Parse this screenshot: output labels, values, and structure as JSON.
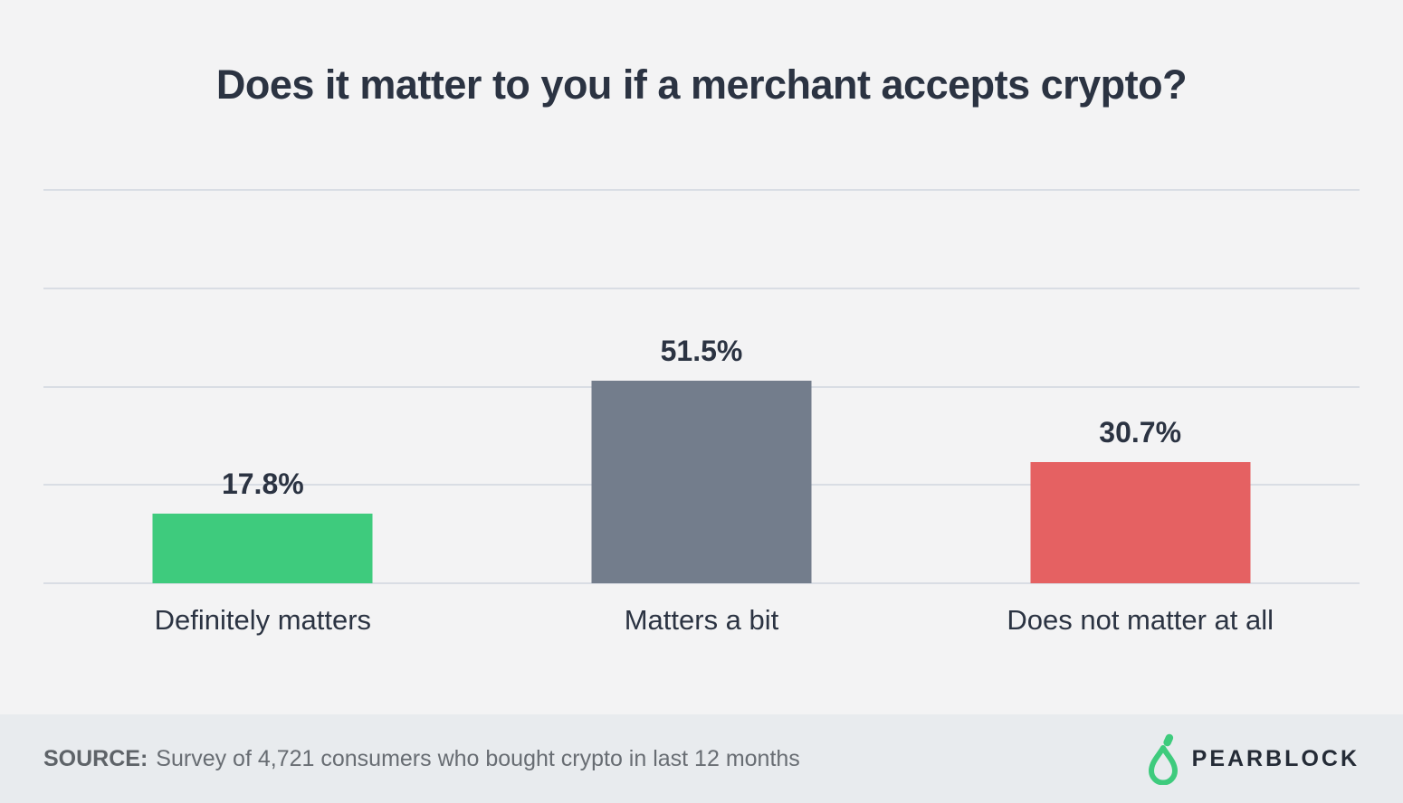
{
  "chart_data": {
    "type": "bar",
    "title": "Does it matter to you if a merchant accepts crypto?",
    "categories": [
      "Definitely matters",
      "Matters a bit",
      "Does not matter at all"
    ],
    "values": [
      17.8,
      51.5,
      30.7
    ],
    "value_labels": [
      "17.8%",
      "51.5%",
      "30.7%"
    ],
    "bar_colors": [
      "#3ecb7d",
      "#737d8c",
      "#e56162"
    ],
    "xlabel": "",
    "ylabel": "",
    "ylim": [
      0,
      100
    ],
    "gridline_values": [
      0,
      25,
      50,
      75,
      100
    ],
    "grid": true,
    "legend": false
  },
  "footer": {
    "source_label": "SOURCE:",
    "source_text": "Survey of 4,721 consumers who bought crypto in last 12 months",
    "brand": "PEARBLOCK"
  },
  "theme": {
    "background": "#f3f3f4",
    "footer_background": "#e8ebee",
    "title_color": "#2b3342",
    "label_color": "#2b3342",
    "gridline_color": "#d9dde4",
    "source_color": "#686d73",
    "source_label_color": "#5e6368",
    "brand_color": "#242b36",
    "pear_green": "#3ecb7d"
  }
}
